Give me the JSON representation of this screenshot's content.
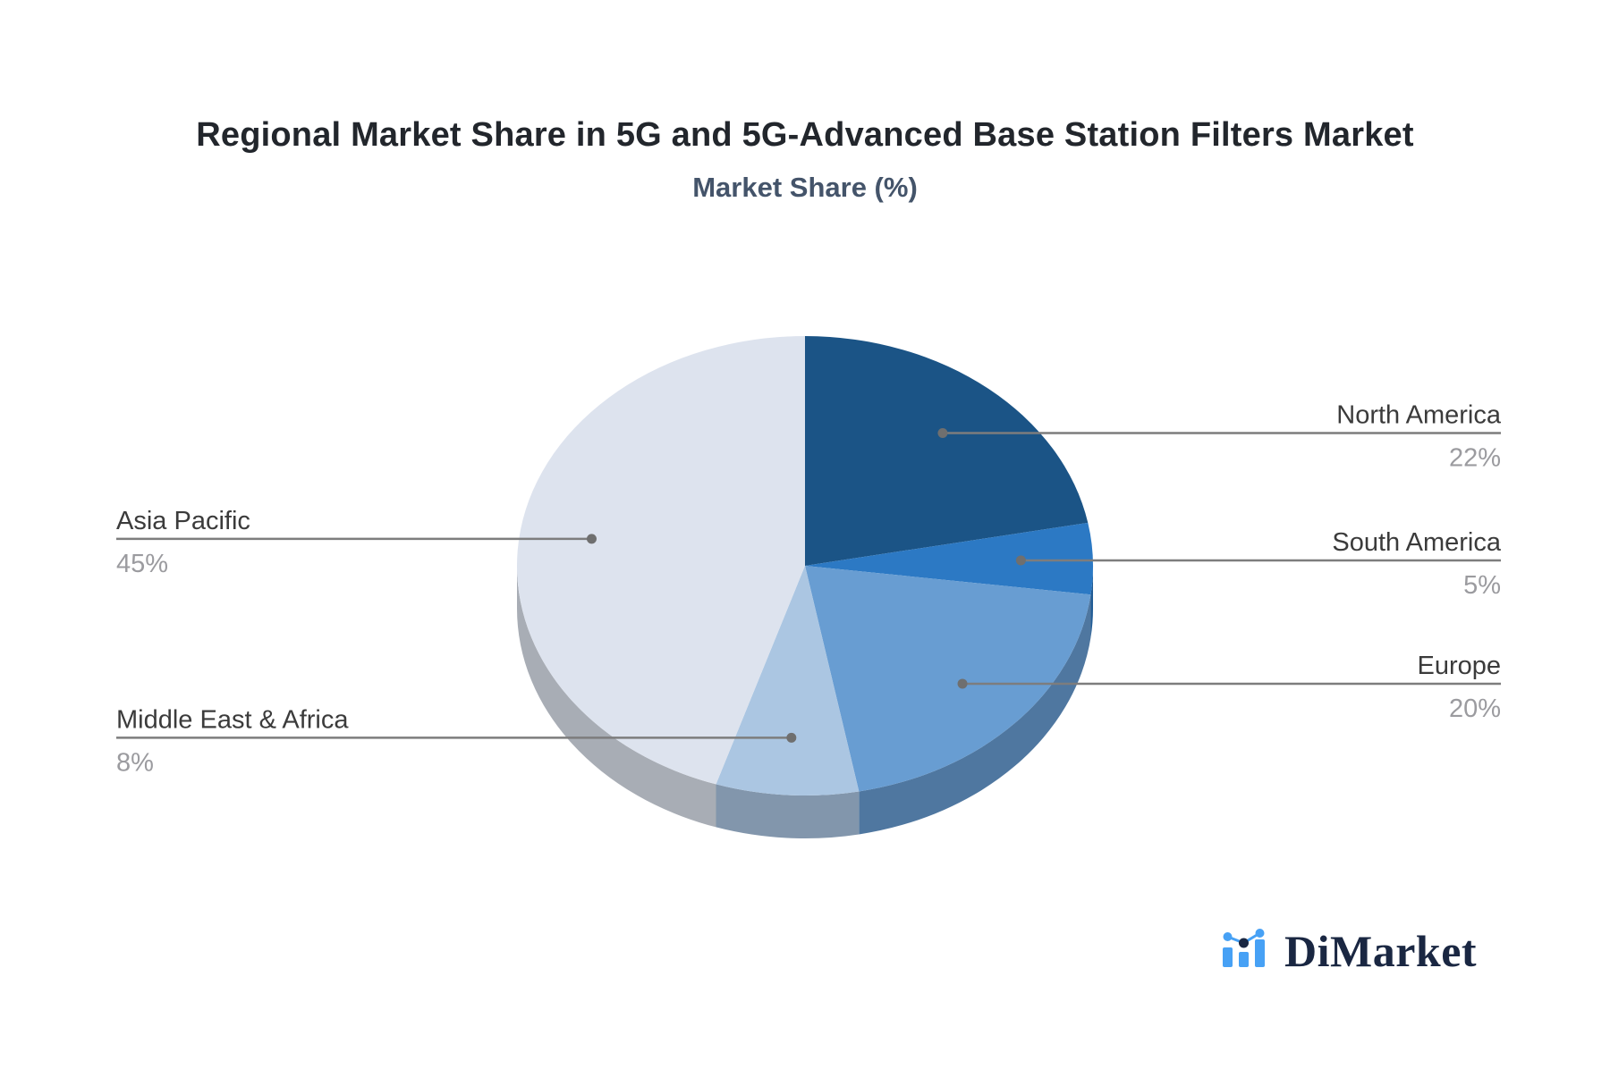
{
  "header": {
    "title": "Regional Market Share in 5G and 5G-Advanced Base Station Filters Market",
    "subtitle": "Market Share (%)"
  },
  "chart_data": {
    "type": "pie",
    "title": "Regional Market Share in 5G and 5G-Advanced Base Station Filters Market",
    "subtitle": "Market Share (%)",
    "unit": "%",
    "style": "3d-depth-pie",
    "start_angle": "12-o-clock",
    "direction": "clockwise",
    "legend_position": "none",
    "labeling": "leader-lines-with-percent",
    "slices": [
      {
        "label": "North America",
        "value": 22,
        "display": "22%",
        "color": "#1b5486"
      },
      {
        "label": "South America",
        "value": 5,
        "display": "5%",
        "color": "#2c79c4"
      },
      {
        "label": "Europe",
        "value": 20,
        "display": "20%",
        "color": "#689dd2"
      },
      {
        "label": "Middle East & Africa",
        "value": 8,
        "display": "8%",
        "color": "#abc6e2"
      },
      {
        "label": "Asia Pacific",
        "value": 45,
        "display": "45%",
        "color": "#dde3ee"
      }
    ]
  },
  "branding": {
    "logo_text": "DiMarket",
    "logo_icon": "bar-chart-icon",
    "text_color": "#1a2742",
    "icon_color": "#47a1f5",
    "icon_dot_color": "#1a2742"
  },
  "colors": {
    "background": "#ffffff",
    "title": "#22262c",
    "subtitle": "#44546a",
    "leader_line": "#7d7d7d",
    "leader_dot": "#6f6f6f",
    "slice_label": "#3b3b3b",
    "slice_value": "#9b9b9f"
  }
}
